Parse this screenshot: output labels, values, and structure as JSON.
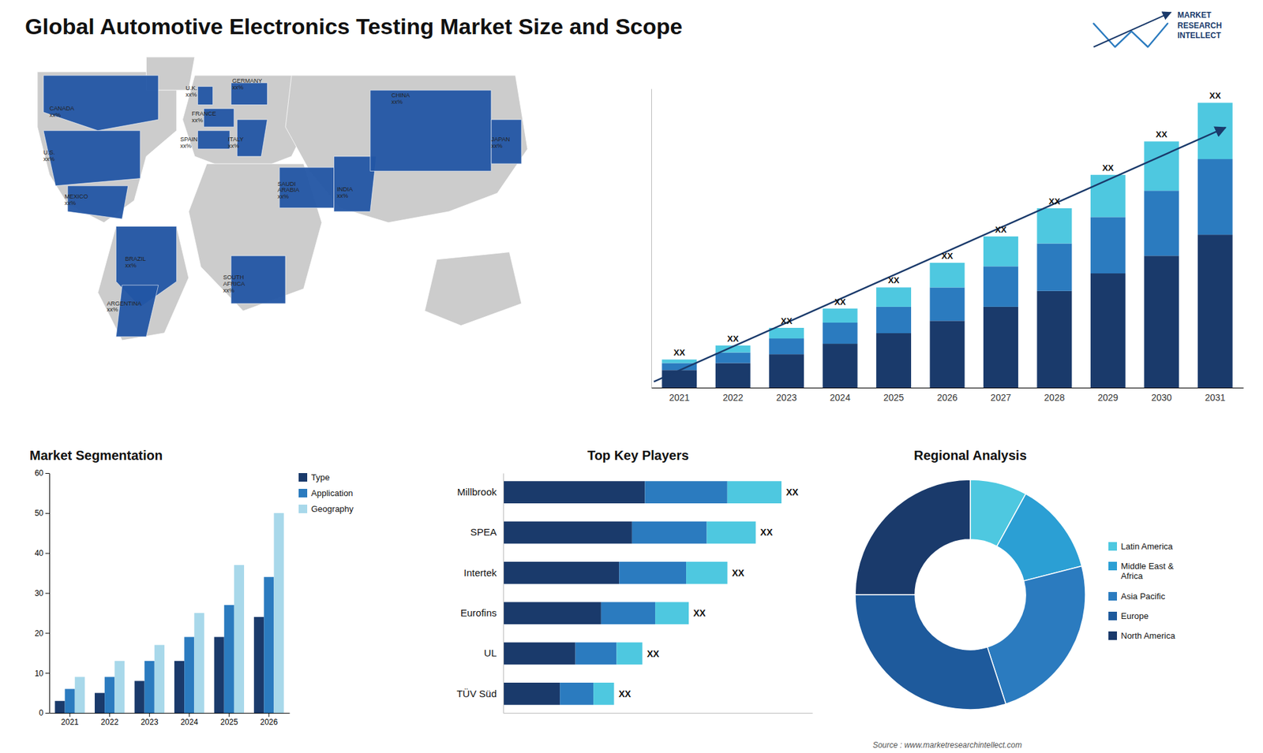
{
  "chart_data": [
    {
      "type": "bar",
      "stacked": true,
      "title": "Global Automotive Electronics Testing Market Size and Scope",
      "categories": [
        "2021",
        "2022",
        "2023",
        "2024",
        "2025",
        "2026",
        "2027",
        "2028",
        "2029",
        "2030",
        "2031"
      ],
      "series": [
        {
          "color": "#1a3a6b",
          "values": [
            1.0,
            1.4,
            1.9,
            2.5,
            3.1,
            3.8,
            4.6,
            5.5,
            6.5,
            7.5,
            8.7
          ]
        },
        {
          "color": "#2b7bbf",
          "values": [
            0.4,
            0.6,
            0.9,
            1.2,
            1.5,
            1.9,
            2.3,
            2.7,
            3.2,
            3.7,
            4.3
          ]
        },
        {
          "color": "#4ec8e0",
          "values": [
            0.2,
            0.4,
            0.6,
            0.8,
            1.1,
            1.4,
            1.7,
            2.0,
            2.4,
            2.8,
            3.2
          ],
          "value_labels": [
            "XX",
            "XX",
            "XX",
            "XX",
            "XX",
            "XX",
            "XX",
            "XX",
            "XX",
            "XX",
            "XX"
          ]
        }
      ],
      "ylim": [
        0,
        17
      ],
      "tick_labels": "x",
      "annotations": [
        "MARKET\nRESEARCH\nINTELLECT",
        "Source : www.marketresearchintellect.com"
      ]
    },
    {
      "type": "bar",
      "title": "Market Segmentation",
      "categories": [
        "2021",
        "2022",
        "2023",
        "2024",
        "2025",
        "2026"
      ],
      "series": [
        {
          "name": "Type",
          "color": "#1a3a6b",
          "values": [
            3,
            5,
            8,
            13,
            19,
            24
          ]
        },
        {
          "name": "Application",
          "color": "#2b7bbf",
          "values": [
            6,
            9,
            13,
            19,
            27,
            34
          ]
        },
        {
          "name": "Geography",
          "color": "#a8d8ea",
          "values": [
            9,
            13,
            17,
            25,
            37,
            50
          ]
        }
      ],
      "ylim": [
        0,
        60
      ],
      "yticks": [
        0,
        10,
        20,
        30,
        40,
        50,
        60
      ],
      "legend": "right"
    },
    {
      "type": "bar",
      "orientation": "horizontal",
      "stacked": true,
      "title": "Top Key Players",
      "categories": [
        "Millbrook",
        "SPEA",
        "Intertek",
        "Eurofins",
        "UL",
        "TÜV Süd"
      ],
      "series": [
        {
          "color": "#1a3a6b",
          "values": [
            5.5,
            5.0,
            4.5,
            3.8,
            2.8,
            2.2
          ]
        },
        {
          "color": "#2b7bbf",
          "values": [
            3.2,
            2.9,
            2.6,
            2.1,
            1.6,
            1.3
          ]
        },
        {
          "color": "#4ec8e0",
          "values": [
            2.1,
            1.9,
            1.6,
            1.3,
            1.0,
            0.8
          ],
          "value_labels": [
            "XX",
            "XX",
            "XX",
            "XX",
            "XX",
            "XX"
          ]
        }
      ],
      "xlim": [
        0,
        12
      ],
      "tick_labels": "y"
    },
    {
      "type": "pie",
      "title": "Regional Analysis",
      "categories": [
        "Latin America",
        "Middle East &\nAfrica",
        "Asia Pacific",
        "Europe",
        "North America"
      ],
      "values": [
        8,
        13,
        24,
        30,
        25
      ],
      "colors": [
        "#4ec8e0",
        "#2b9fd4",
        "#2b7bbf",
        "#1e5a9c",
        "#1a3a6b"
      ],
      "legend": "right"
    },
    {
      "type": "map",
      "color": "#2255a4",
      "annotations": [
        "CANADA\nxx%",
        "U.S.\nxx%",
        "MEXICO\nxx%",
        "BRAZIL\nxx%",
        "ARGENTINA\nxx%",
        "U.K.\nxx%",
        "FRANCE\nxx%",
        "SPAIN\nxx%",
        "GERMANY\nxx%",
        "ITALY\nxx%",
        "SAUDI\nARABIA\nxx%",
        "SOUTH\nAFRICA\nxx%",
        "INDIA\nxx%",
        "CHINA\nxx%",
        "JAPAN\nxx%"
      ]
    }
  ]
}
